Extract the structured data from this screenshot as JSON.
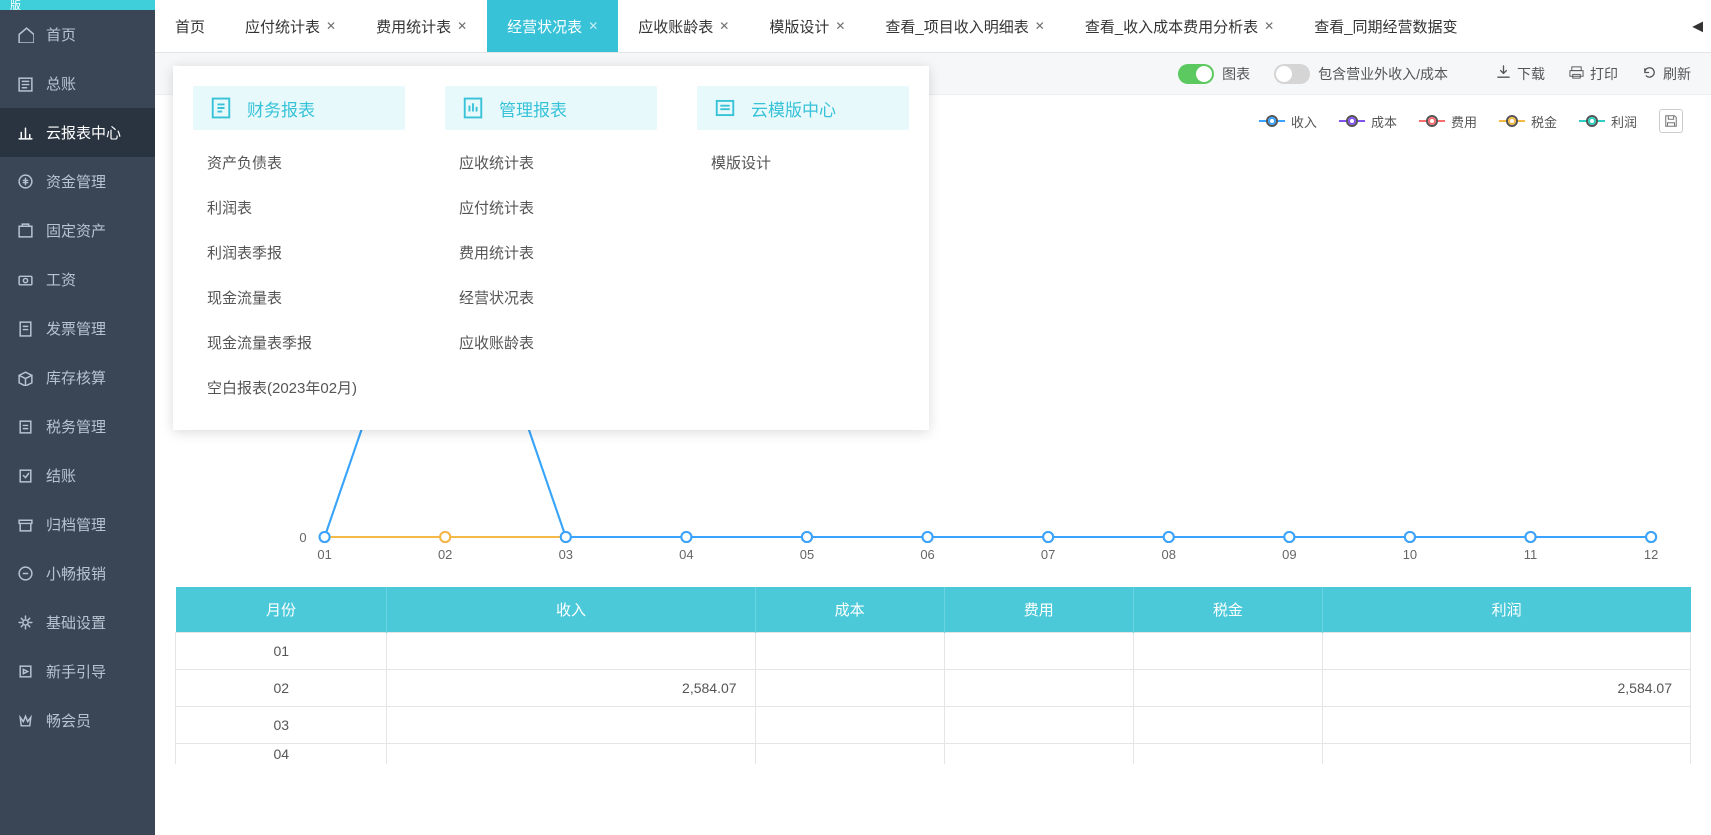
{
  "sidebar": {
    "topTag": "版",
    "items": [
      {
        "icon": "home",
        "label": "首页"
      },
      {
        "icon": "ledger",
        "label": "总账"
      },
      {
        "icon": "chart",
        "label": "云报表中心",
        "active": true
      },
      {
        "icon": "money",
        "label": "资金管理"
      },
      {
        "icon": "asset",
        "label": "固定资产"
      },
      {
        "icon": "salary",
        "label": "工资"
      },
      {
        "icon": "invoice",
        "label": "发票管理"
      },
      {
        "icon": "stock",
        "label": "库存核算"
      },
      {
        "icon": "tax",
        "label": "税务管理"
      },
      {
        "icon": "close-books",
        "label": "结账"
      },
      {
        "icon": "archive",
        "label": "归档管理"
      },
      {
        "icon": "expense",
        "label": "小畅报销"
      },
      {
        "icon": "settings",
        "label": "基础设置"
      },
      {
        "icon": "guide",
        "label": "新手引导"
      },
      {
        "icon": "vip",
        "label": "畅会员"
      }
    ]
  },
  "tabs": [
    {
      "label": "首页",
      "closable": false
    },
    {
      "label": "应付统计表",
      "closable": true
    },
    {
      "label": "费用统计表",
      "closable": true
    },
    {
      "label": "经营状况表",
      "closable": true,
      "active": true
    },
    {
      "label": "应收账龄表",
      "closable": true
    },
    {
      "label": "模版设计",
      "closable": true
    },
    {
      "label": "查看_项目收入明细表",
      "closable": true
    },
    {
      "label": "查看_收入成本费用分析表",
      "closable": true
    },
    {
      "label": "查看_同期经营数据变",
      "closable": false,
      "truncated": true
    }
  ],
  "toolbar": {
    "chartToggle": {
      "on": true,
      "label": "图表"
    },
    "includeToggle": {
      "on": false,
      "label": "包含营业外收入/成本"
    },
    "download": "下载",
    "print": "打印",
    "refresh": "刷新"
  },
  "chart": {
    "legend": [
      {
        "name": "收入",
        "color": "#3ba3ff"
      },
      {
        "name": "成本",
        "color": "#8354ee"
      },
      {
        "name": "费用",
        "color": "#f76e6e"
      },
      {
        "name": "税金",
        "color": "#f5b945"
      },
      {
        "name": "利润",
        "color": "#2ecfc0"
      }
    ],
    "xLabels": [
      "01",
      "02",
      "03",
      "04",
      "05",
      "06",
      "07",
      "08",
      "09",
      "10",
      "11",
      "12"
    ],
    "yZero": "0",
    "series": {
      "income": [
        0,
        2584.07,
        0,
        0,
        0,
        0,
        0,
        0,
        0,
        0,
        0,
        0
      ],
      "cost": [
        0,
        0,
        0,
        0,
        0,
        0,
        0,
        0,
        0,
        0,
        0,
        0
      ],
      "fee": [
        0,
        0,
        0,
        0,
        0,
        0,
        0,
        0,
        0,
        0,
        0,
        0
      ],
      "tax": [
        0,
        0,
        0,
        0,
        0,
        0,
        0,
        0,
        0,
        0,
        0,
        0
      ],
      "profit": [
        0,
        2584.07,
        0,
        0,
        0,
        0,
        0,
        0,
        0,
        0,
        0,
        0
      ]
    },
    "maxY": 2800,
    "plotLeft": 150,
    "plotRight": 1480,
    "plotTop": 20,
    "plotBottom": 400,
    "markerRadius": 5
  },
  "table": {
    "headers": [
      "月份",
      "收入",
      "成本",
      "费用",
      "税金",
      "利润"
    ],
    "rows": [
      {
        "month": "01",
        "income": "",
        "cost": "",
        "fee": "",
        "tax": "",
        "profit": ""
      },
      {
        "month": "02",
        "income": "2,584.07",
        "cost": "",
        "fee": "",
        "tax": "",
        "profit": "2,584.07"
      },
      {
        "month": "03",
        "income": "",
        "cost": "",
        "fee": "",
        "tax": "",
        "profit": ""
      },
      {
        "month": "04",
        "income": "",
        "cost": "",
        "fee": "",
        "tax": "",
        "profit": "",
        "partial": true
      }
    ]
  },
  "megaMenu": {
    "cols": [
      {
        "title": "财务报表",
        "icon": "fin-report",
        "items": [
          "资产负债表",
          "利润表",
          "利润表季报",
          "现金流量表",
          "现金流量表季报",
          "空白报表(2023年02月)"
        ]
      },
      {
        "title": "管理报表",
        "icon": "mgmt-report",
        "items": [
          "应收统计表",
          "应付统计表",
          "费用统计表",
          "经营状况表",
          "应收账龄表"
        ]
      },
      {
        "title": "云模版中心",
        "icon": "cloud-tpl",
        "items": [
          "模版设计"
        ]
      }
    ]
  }
}
